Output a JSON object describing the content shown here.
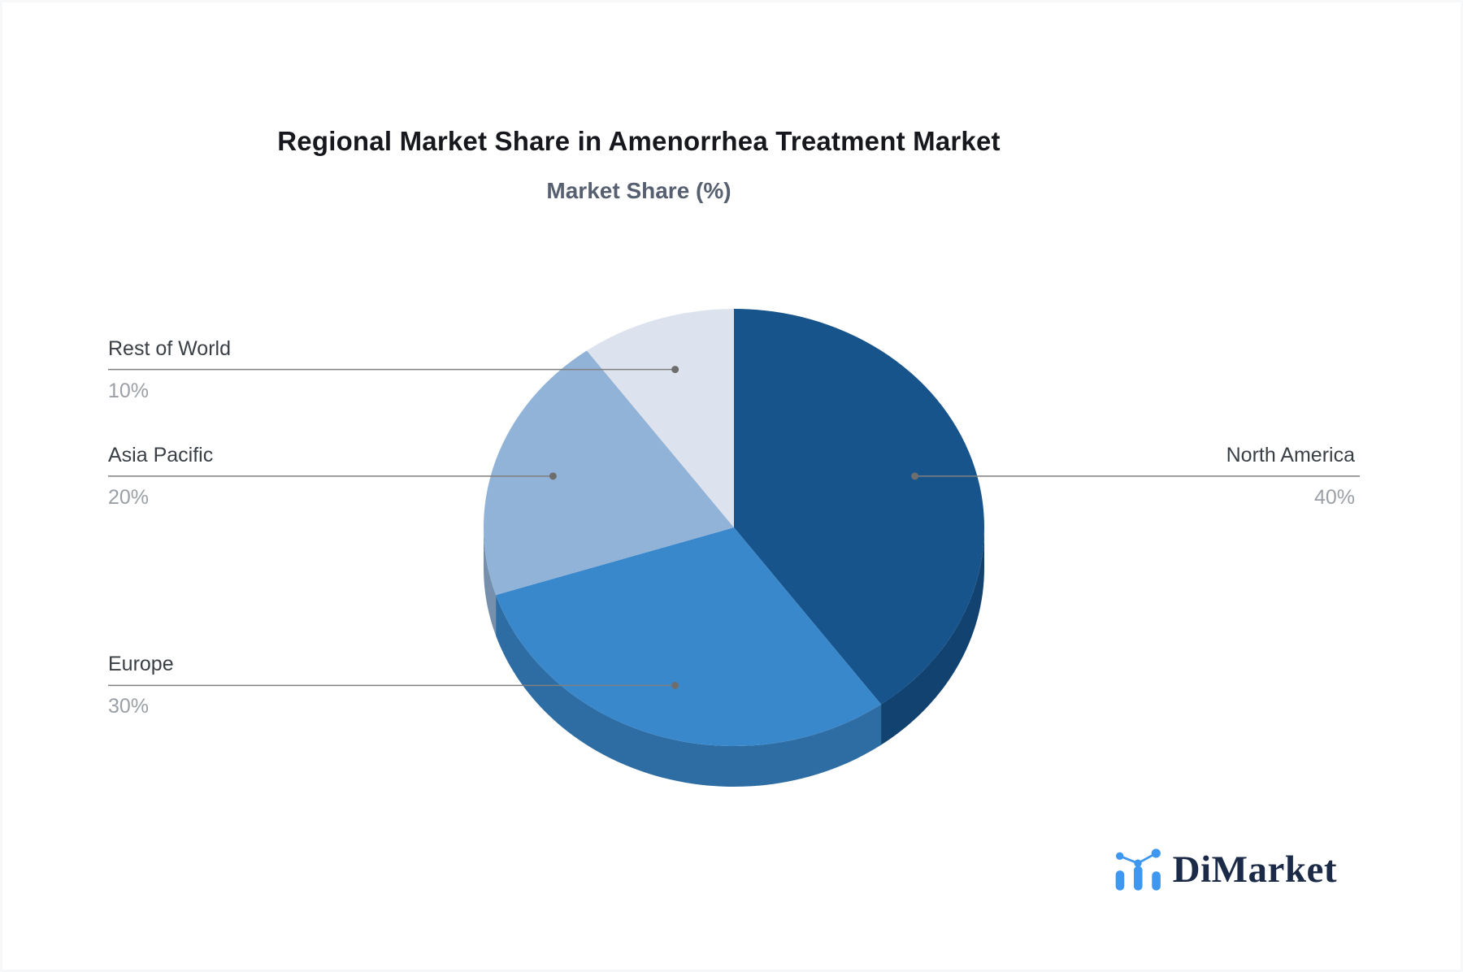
{
  "title": "Regional Market Share in Amenorrhea Treatment Market",
  "subtitle": "Market Share (%)",
  "chart_data": {
    "type": "pie",
    "title": "Regional Market Share in Amenorrhea Treatment Market",
    "subtitle": "Market Share (%)",
    "unit": "%",
    "effect": "3d",
    "start_angle_deg": 0,
    "direction": "clockwise",
    "legend_position": "none",
    "slices": [
      {
        "label": "North America",
        "value": 40,
        "color": "#17548C",
        "label_side": "right"
      },
      {
        "label": "Europe",
        "value": 30,
        "color": "#3A88CC",
        "label_side": "left"
      },
      {
        "label": "Asia Pacific",
        "value": 20,
        "color": "#92B3D8",
        "label_side": "left"
      },
      {
        "label": "Rest of World",
        "value": 10,
        "color": "#DDE3EE",
        "label_side": "left"
      }
    ],
    "leader_line_color": "#7f7f7f",
    "leader_dot_color": "#6e6e6e",
    "label_name_color": "#3a3f46",
    "label_value_color": "#9aa0a6"
  },
  "brand": {
    "name": "DiMarket",
    "icon": "bar-line-chart-icon",
    "icon_color": "#3E97F0",
    "text_color": "#1B2A47"
  }
}
